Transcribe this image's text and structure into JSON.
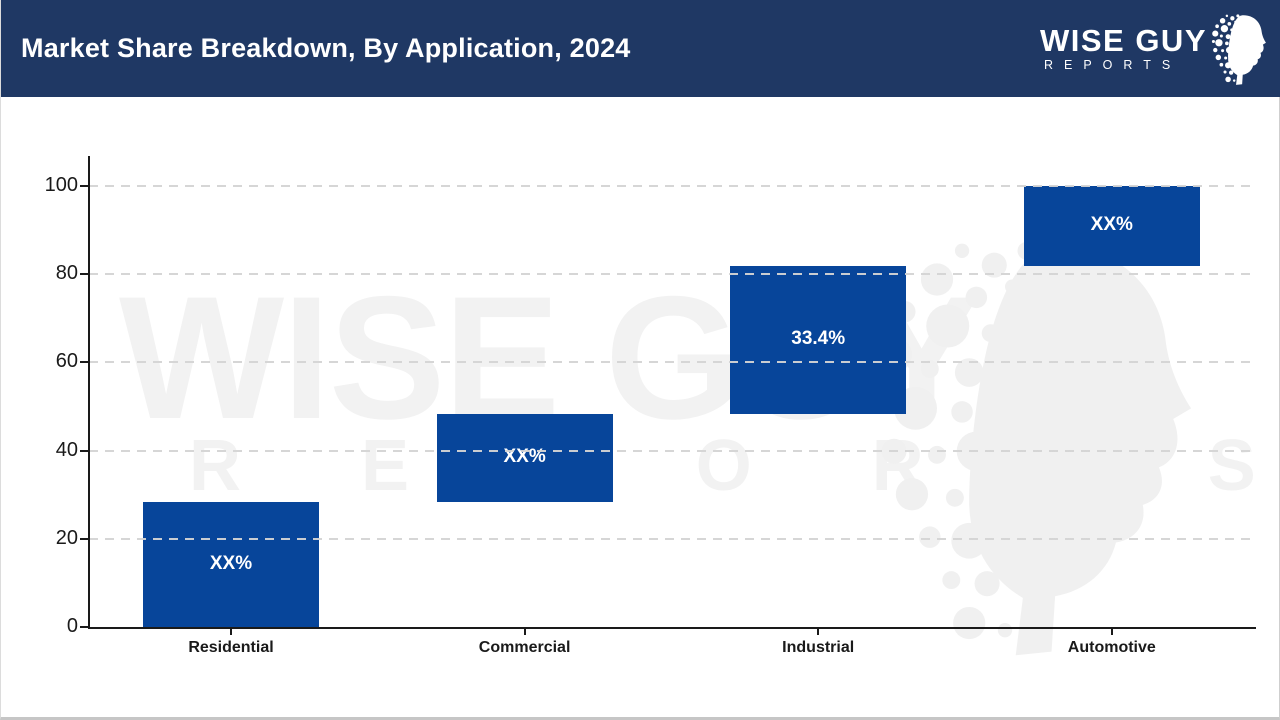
{
  "header": {
    "title": "Market Share Breakdown, By Application, 2024",
    "logo": {
      "line1": "WISE GUY",
      "line2": "REPORTS"
    }
  },
  "watermark": {
    "line1": "WISE GUY",
    "line2": "R E P O R T S"
  },
  "colors": {
    "header_bg": "#1f3864",
    "bar": "#07459a",
    "bar_label_text": "#ffffff",
    "gridline": "#d4d4d4",
    "axis": "#1a1a1a",
    "watermark": "#f2f2f2"
  },
  "chart_data": {
    "type": "bar",
    "subtype": "floating-waterfall",
    "title": "Market Share Breakdown, By Application, 2024",
    "xlabel": "",
    "ylabel": "",
    "categories": [
      "Residential",
      "Commercial",
      "Industrial",
      "Automotive"
    ],
    "segments": [
      {
        "category": "Residential",
        "start": 0,
        "end": 28.3,
        "value": 28.3,
        "label": "XX%"
      },
      {
        "category": "Commercial",
        "start": 28.3,
        "end": 48.4,
        "value": 20.1,
        "label": "XX%"
      },
      {
        "category": "Industrial",
        "start": 48.4,
        "end": 81.8,
        "value": 33.4,
        "label": "33.4%"
      },
      {
        "category": "Automotive",
        "start": 81.8,
        "end": 100,
        "value": 18.2,
        "label": "XX%"
      }
    ],
    "yticks": [
      0,
      20,
      40,
      60,
      80,
      100
    ],
    "ylim": [
      0,
      106
    ],
    "grid": "horizontal dashed lines drawn over bars",
    "legend": "none"
  }
}
